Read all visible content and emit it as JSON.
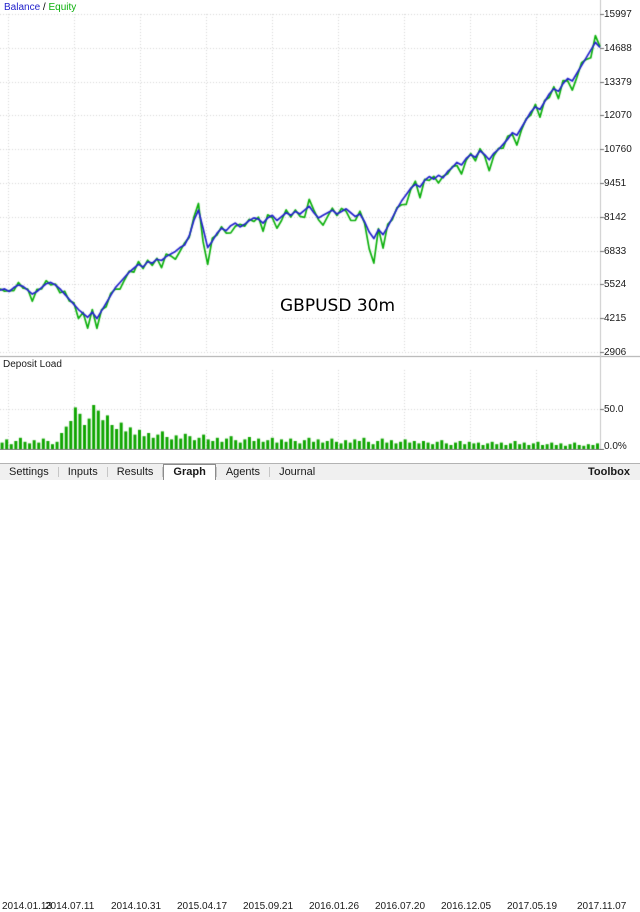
{
  "legend": {
    "balance_label": "Balance",
    "separator": " / ",
    "equity_label": "Equity"
  },
  "annotation": "GBPUSD 30m",
  "deposit_load": {
    "label": "Deposit Load",
    "y_mid_label": "50.0",
    "y_bottom_label": "0.0%"
  },
  "tabs": {
    "items": [
      "Settings",
      "Inputs",
      "Results",
      "Graph",
      "Agents",
      "Journal"
    ],
    "active": "Graph",
    "right_label": "Toolbox"
  },
  "chart_data": {
    "type": "line",
    "title": "Balance / Equity",
    "legend_position": "top-left",
    "grid": true,
    "grid_color": "#d9d9d9",
    "y_ticks": [
      15997,
      14688,
      13379,
      12070,
      10760,
      9451,
      8142,
      6833,
      5524,
      4215,
      2906
    ],
    "x_ticks": [
      "2014.01.13",
      "2014.07.11",
      "2014.10.31",
      "2015.04.17",
      "2015.09.21",
      "2016.01.26",
      "2016.07.20",
      "2016.12.05",
      "2017.05.19",
      "2017.11.07"
    ],
    "series": [
      {
        "name": "Balance",
        "color": "#2222cc",
        "values": [
          5300,
          5350,
          5250,
          5400,
          5500,
          5450,
          5300,
          5150,
          5250,
          5400,
          5550,
          5600,
          5500,
          5350,
          5150,
          4950,
          4750,
          4550,
          4400,
          4250,
          4450,
          4200,
          4500,
          4800,
          5100,
          5400,
          5600,
          5800,
          6000,
          6150,
          6300,
          6200,
          6400,
          6350,
          6500,
          6450,
          6600,
          6700,
          6800,
          6950,
          7050,
          7400,
          8000,
          8400,
          7700,
          6950,
          7200,
          7500,
          7700,
          7600,
          7800,
          7900,
          7750,
          7850,
          8000,
          8100,
          8050,
          7900,
          8100,
          8200,
          8000,
          8150,
          8300,
          8200,
          8350,
          8250,
          8400,
          8550,
          8300,
          8100,
          8200,
          8300,
          8400,
          8250,
          8350,
          8450,
          8300,
          8150,
          8250,
          7950,
          7550,
          7300,
          7650,
          7450,
          7750,
          8100,
          8450,
          8750,
          9000,
          9250,
          9400,
          9300,
          9550,
          9700,
          9600,
          9750,
          9650,
          9900,
          10050,
          10250,
          10150,
          10400,
          10550,
          10450,
          10700,
          10550,
          10350,
          10600,
          10750,
          10950,
          11150,
          11400,
          11300,
          11600,
          11900,
          12200,
          12400,
          12300,
          12600,
          12900,
          13100,
          13000,
          13300,
          13500,
          13400,
          13700,
          14000,
          14300,
          14600,
          14900,
          14700
        ]
      },
      {
        "name": "Equity",
        "color": "#0cb00c",
        "jitter_pattern": [
          60,
          -90,
          35,
          -120,
          100,
          -70,
          45,
          -140,
          80,
          -55,
          120,
          -95,
          40,
          -150,
          110,
          -65
        ],
        "deviations": [
          [
            7,
            -280
          ],
          [
            17,
            -350
          ],
          [
            19,
            -420
          ],
          [
            21,
            -380
          ],
          [
            26,
            -260
          ],
          [
            35,
            -280
          ],
          [
            38,
            -300
          ],
          [
            43,
            260
          ],
          [
            44,
            -520
          ],
          [
            45,
            -650
          ],
          [
            50,
            -280
          ],
          [
            57,
            -320
          ],
          [
            60,
            -300
          ],
          [
            66,
            -280
          ],
          [
            67,
            270
          ],
          [
            70,
            -380
          ],
          [
            76,
            -300
          ],
          [
            80,
            -650
          ],
          [
            81,
            -950
          ],
          [
            83,
            -520
          ],
          [
            88,
            -380
          ],
          [
            91,
            -420
          ],
          [
            95,
            -300
          ],
          [
            100,
            -350
          ],
          [
            106,
            -420
          ],
          [
            112,
            -380
          ],
          [
            117,
            -300
          ],
          [
            121,
            -280
          ],
          [
            124,
            -350
          ],
          [
            128,
            -300
          ],
          [
            129,
            260
          ]
        ]
      }
    ],
    "bars": {
      "name": "Deposit Load",
      "unit": "%",
      "color": "#0fa500",
      "axis_labels": [
        "50.0",
        "0.0%"
      ],
      "values": [
        8,
        12,
        6,
        10,
        14,
        9,
        7,
        11,
        8,
        13,
        10,
        6,
        9,
        20,
        28,
        35,
        52,
        44,
        30,
        38,
        55,
        48,
        36,
        42,
        30,
        25,
        33,
        22,
        27,
        18,
        24,
        16,
        20,
        14,
        18,
        22,
        15,
        12,
        17,
        13,
        19,
        16,
        11,
        14,
        18,
        12,
        10,
        14,
        9,
        13,
        16,
        11,
        8,
        12,
        15,
        10,
        13,
        9,
        11,
        14,
        8,
        12,
        9,
        13,
        10,
        7,
        11,
        14,
        9,
        12,
        8,
        10,
        13,
        9,
        7,
        11,
        8,
        12,
        10,
        14,
        9,
        6,
        10,
        13,
        8,
        11,
        7,
        9,
        12,
        8,
        10,
        7,
        10,
        8,
        6,
        9,
        11,
        7,
        5,
        8,
        10,
        6,
        9,
        7,
        8,
        5,
        7,
        9,
        6,
        8,
        5,
        7,
        10,
        6,
        8,
        5,
        7,
        9,
        5,
        6,
        8,
        5,
        7,
        4,
        6,
        8,
        5,
        4,
        6,
        5,
        7
      ]
    }
  }
}
